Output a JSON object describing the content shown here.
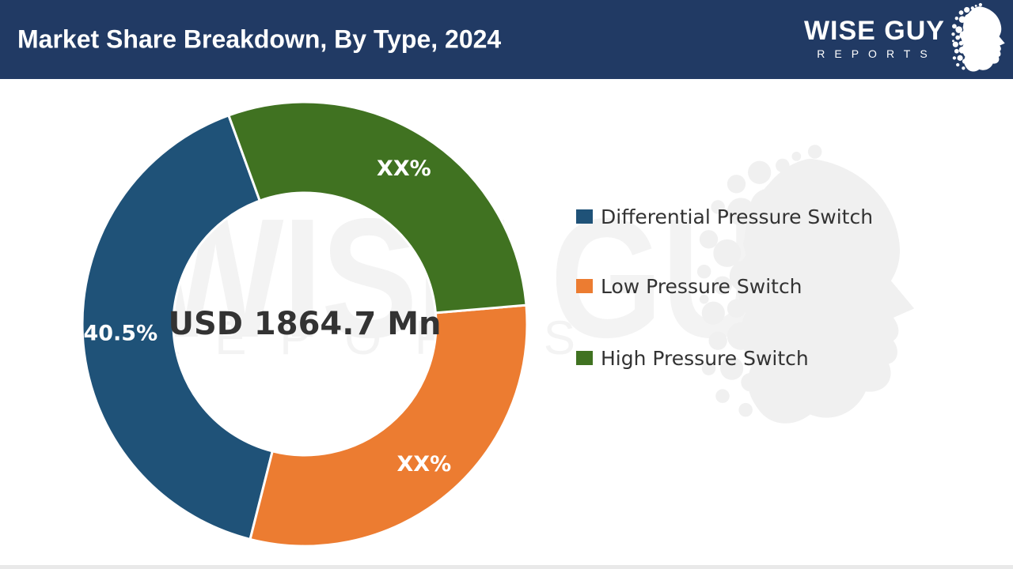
{
  "header": {
    "title": "Market Share Breakdown, By Type, 2024"
  },
  "logo": {
    "wordmark": "WISE GUY",
    "subtext": "REPORTS"
  },
  "watermark": {
    "line1": "WISE GUY",
    "line2": "REPORTS"
  },
  "colors": {
    "header_bg": "#213A64",
    "title_text": "#FFFFFF",
    "chart_text": "#333333",
    "watermark_face": "#F0F0F0",
    "watermark_text": "#F3F3F3",
    "footer_strip": "#E9E9E9"
  },
  "chart_data": {
    "type": "pie",
    "subtype": "donut",
    "title": "Market Share Breakdown, By Type, 2024",
    "center_label": "USD 1864.7 Mn",
    "unit": "%",
    "series": [
      {
        "name": "Differential Pressure Switch",
        "value": 40.5,
        "display_label": "40.5%",
        "color": "#1F5278"
      },
      {
        "name": "Low Pressure Switch",
        "value": 30.3,
        "display_label": "XX%",
        "color": "#EC7C31"
      },
      {
        "name": "High Pressure Switch",
        "value": 29.2,
        "display_label": "XX%",
        "color": "#407221"
      }
    ],
    "layout": {
      "legend_position": "right",
      "start_angle_deg": 110,
      "direction": "counterclockwise",
      "center": {
        "x": 385,
        "y": 410
      },
      "outer_radius": 281,
      "inner_radius": 166,
      "label_radius": 233,
      "slice_gap_stroke": "#FFFFFF"
    }
  }
}
